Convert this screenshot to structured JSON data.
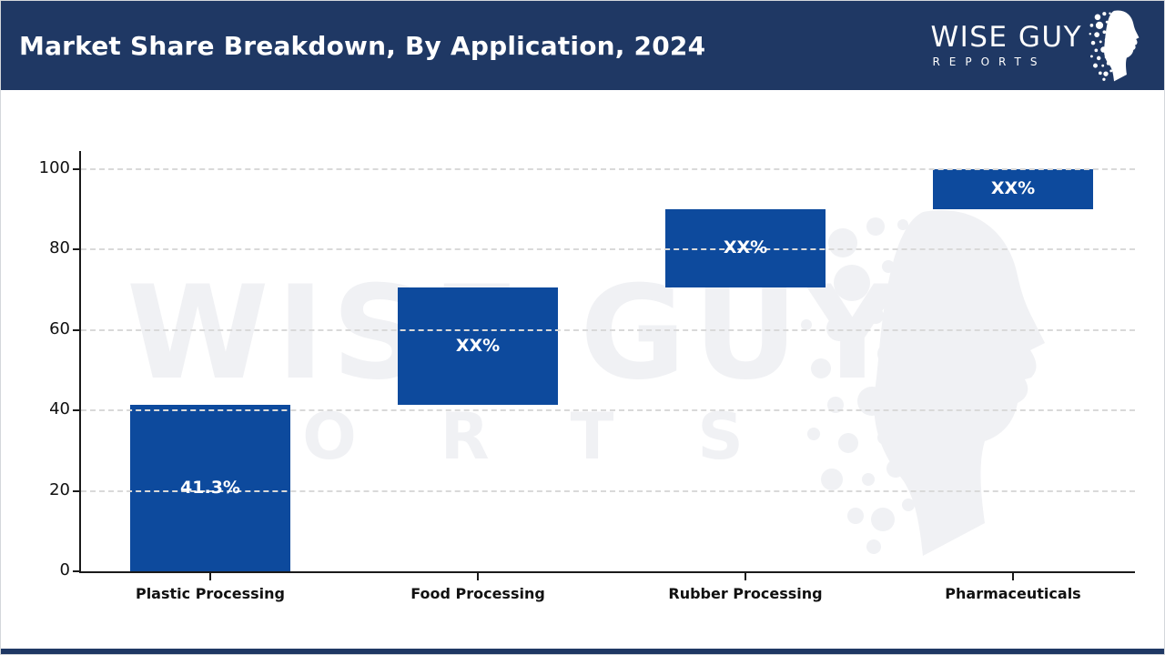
{
  "header": {
    "title": "Market Share Breakdown, By Application, 2024",
    "logo": {
      "wordmark": "WISE GUY",
      "subtitle": "REPORTS"
    }
  },
  "watermark": {
    "line1": "WISE GUY",
    "line2": "PORTS"
  },
  "chart_data": {
    "type": "bar",
    "subtype": "waterfall",
    "title": "Market Share Breakdown, By Application, 2024",
    "categories": [
      "Plastic Processing",
      "Food Processing",
      "Rubber Processing",
      "Pharmaceuticals"
    ],
    "segments": [
      {
        "category": "Plastic Processing",
        "start": 0,
        "end": 41.3,
        "label": "41.3%"
      },
      {
        "category": "Food Processing",
        "start": 41.3,
        "end": 70.6,
        "label": "XX%"
      },
      {
        "category": "Rubber Processing",
        "start": 70.6,
        "end": 90.0,
        "label": "XX%"
      },
      {
        "category": "Pharmaceuticals",
        "start": 90.0,
        "end": 100.0,
        "label": "XX%"
      }
    ],
    "ylim": [
      0,
      100
    ],
    "yticks": [
      0,
      20,
      40,
      60,
      80,
      100
    ],
    "grid": "horizontal-dashed-over-bars",
    "legend": "none",
    "bar_color": "#0d4a9d",
    "bar_label_color": "#ffffff",
    "grid_color": "#d9d9d9",
    "axis_color": "#1a1a1a"
  },
  "colors": {
    "header_bg": "#1f3864",
    "footer_bg": "#1f3864",
    "watermark": "#f0f1f4",
    "background": "#ffffff"
  }
}
